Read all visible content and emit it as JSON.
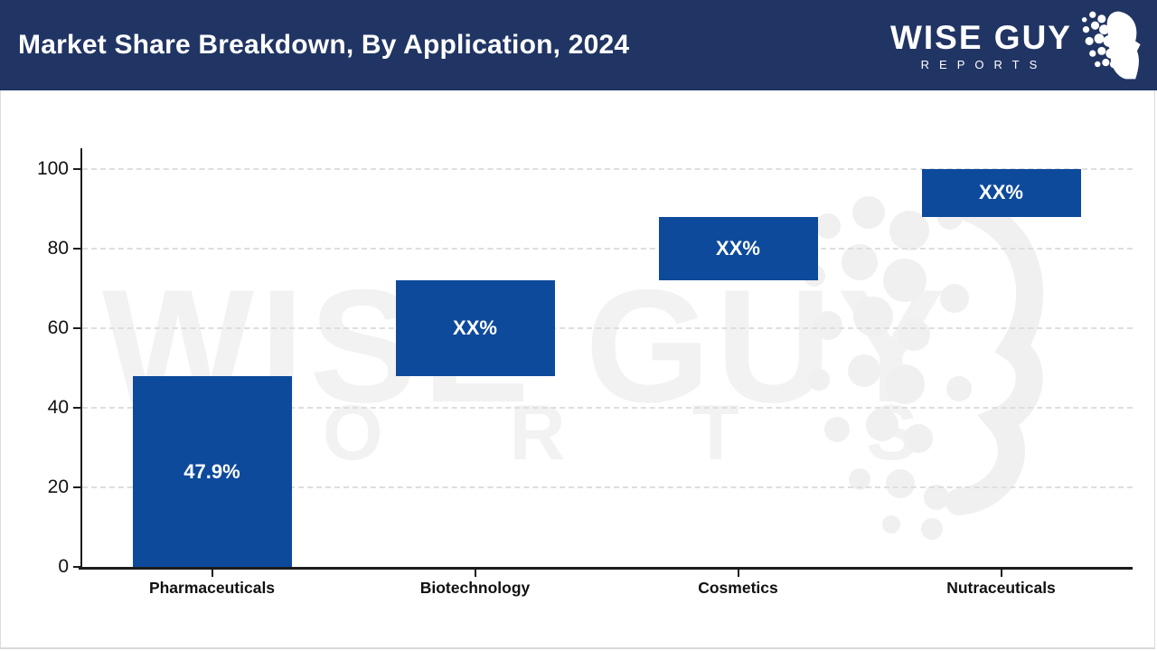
{
  "header": {
    "title": "Market Share Breakdown, By Application, 2024",
    "bg_color": "#213564",
    "logo": {
      "line1": "WISE GUY",
      "line2": "REPORTS"
    }
  },
  "watermark": {
    "line1": "WISE GUY",
    "line2": "P O R T S"
  },
  "chart_data": {
    "type": "bar",
    "subtype": "floating-waterfall",
    "title": "Market Share Breakdown, By Application, 2024",
    "categories": [
      "Pharmaceuticals",
      "Biotechnology",
      "Cosmetics",
      "Nutraceuticals"
    ],
    "bars": [
      {
        "category": "Pharmaceuticals",
        "from": 0,
        "to": 47.9,
        "label": "47.9%"
      },
      {
        "category": "Biotechnology",
        "from": 47.9,
        "to": 72,
        "label": "XX%"
      },
      {
        "category": "Cosmetics",
        "from": 72,
        "to": 88,
        "label": "XX%"
      },
      {
        "category": "Nutraceuticals",
        "from": 88,
        "to": 100,
        "label": "XX%"
      }
    ],
    "bar_color": "#0d4a9c",
    "bar_label_color": "#ffffff",
    "axis_color": "#1b1b1b",
    "grid_color": "#dedede",
    "ylim": [
      0,
      105
    ],
    "yticks": [
      0,
      20,
      40,
      60,
      80,
      100
    ],
    "grid": "horizontal-dashed",
    "legend": null,
    "xlabel": "",
    "ylabel": ""
  }
}
